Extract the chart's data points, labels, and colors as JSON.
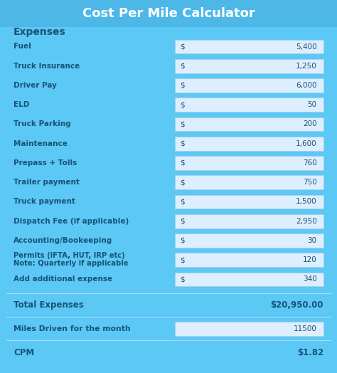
{
  "title": "Cost Per Mile Calculator",
  "title_bg": "#4db8e8",
  "bg_color": "#5bc8f5",
  "header_text_color": "#ffffff",
  "label_text_color": "#1a5276",
  "input_box_color": "#ddeeff",
  "input_box_edge": "#b0cce0",
  "rows": [
    {
      "label": "Fuel",
      "dollar": true,
      "value": "5,400"
    },
    {
      "label": "Truck Insurance",
      "dollar": true,
      "value": "1,250"
    },
    {
      "label": "Driver Pay",
      "dollar": true,
      "value": "6,000"
    },
    {
      "label": "ELD",
      "dollar": true,
      "value": "50"
    },
    {
      "label": "Truck Parking",
      "dollar": true,
      "value": "200"
    },
    {
      "label": "Maintenance",
      "dollar": true,
      "value": "1,600"
    },
    {
      "label": "Prepass + Tolls",
      "dollar": true,
      "value": "760"
    },
    {
      "label": "Trailer payment",
      "dollar": true,
      "value": "750"
    },
    {
      "label": "Truck payment",
      "dollar": true,
      "value": "1,500"
    },
    {
      "label": "Dispatch Fee (if applicable)",
      "dollar": true,
      "value": "2,950"
    },
    {
      "label": "Accounting/Bookeeping",
      "dollar": true,
      "value": "30"
    },
    {
      "label": "Permits (IFTA, HUT, IRP etc)\nNote: Quarterly if applicable",
      "dollar": true,
      "value": "120"
    },
    {
      "label": "Add additional expense",
      "dollar": true,
      "value": "340"
    }
  ],
  "total_label": "Total Expenses",
  "total_value": "$20,950.00",
  "miles_label": "Miles Driven for the month",
  "miles_value": "11500",
  "cpm_label": "CPM",
  "cpm_value": "$1.82",
  "expenses_header": "Expenses"
}
